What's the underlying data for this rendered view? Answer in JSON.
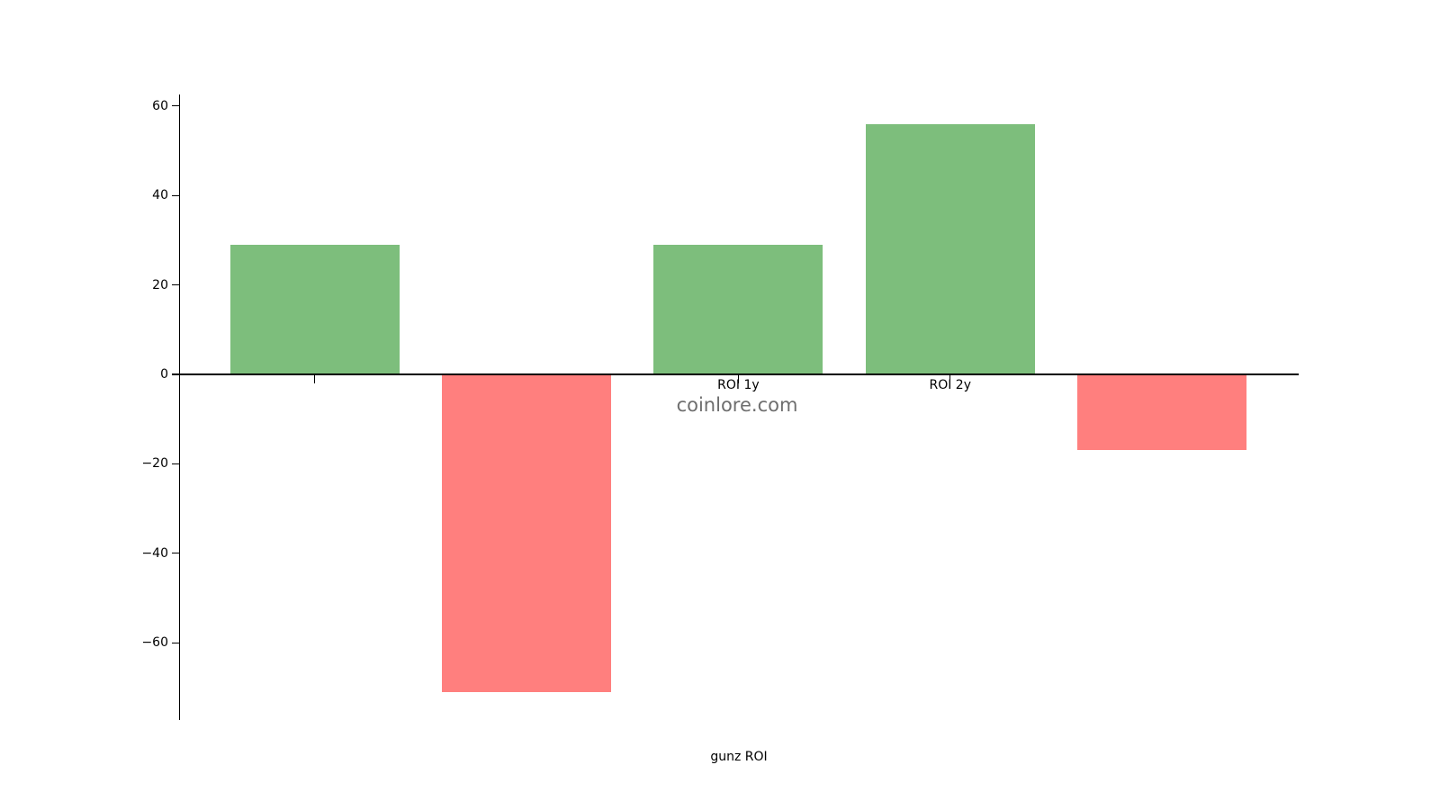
{
  "watermark": "coinlore.com",
  "chart_data": {
    "type": "bar",
    "title": "",
    "xlabel": "gunz ROI",
    "ylabel": "",
    "categories": [
      "",
      "",
      "ROI 1y",
      "ROI 2y",
      ""
    ],
    "values": [
      29,
      -71,
      29,
      56,
      -17
    ],
    "yticks": [
      60,
      40,
      20,
      0,
      -20,
      -40,
      -60
    ],
    "ytick_labels": [
      "60",
      "40",
      "20",
      "0",
      "−20",
      "−40",
      "−60"
    ],
    "ylim": [
      -77.4,
      62.4
    ],
    "grid": false,
    "legend": null,
    "positive_color": "#7dbe7c",
    "negative_color": "#ff7f7e",
    "axis_color": "#000000",
    "watermark_color": "#6e6e6e"
  }
}
